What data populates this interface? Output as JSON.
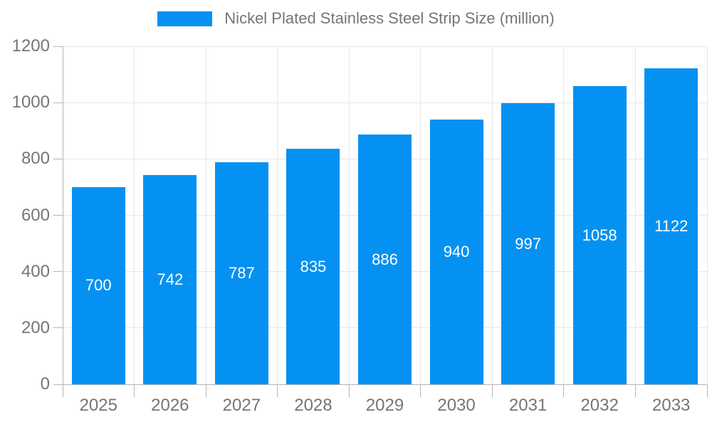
{
  "legend": {
    "swatch_icon": "series-color-swatch",
    "label": "Nickel Plated Stainless Steel Strip Size (million)"
  },
  "colors": {
    "bar": "#0591F2",
    "axis_text": "#757575",
    "value_label_text": "#FFFFFF",
    "gridline": "#E6E6E6",
    "axis_line": "#B5B5B5",
    "background": "#FFFFFF"
  },
  "chart_data": {
    "type": "bar",
    "title": "Nickel Plated Stainless Steel Strip Size (million)",
    "legend_entries": [
      "Nickel Plated Stainless Steel Strip Size (million)"
    ],
    "legend_position": "top-center",
    "categories": [
      "2025",
      "2026",
      "2027",
      "2028",
      "2029",
      "2030",
      "2031",
      "2032",
      "2033"
    ],
    "values": [
      700,
      742,
      787,
      835,
      886,
      940,
      997,
      1058,
      1122
    ],
    "xlabel": "",
    "ylabel": "",
    "ylim": [
      0,
      1200
    ],
    "y_ticks": [
      0,
      200,
      400,
      600,
      800,
      1000,
      1200
    ],
    "grid": "horizontal-and-vertical",
    "value_labels_position": "inside-center"
  }
}
